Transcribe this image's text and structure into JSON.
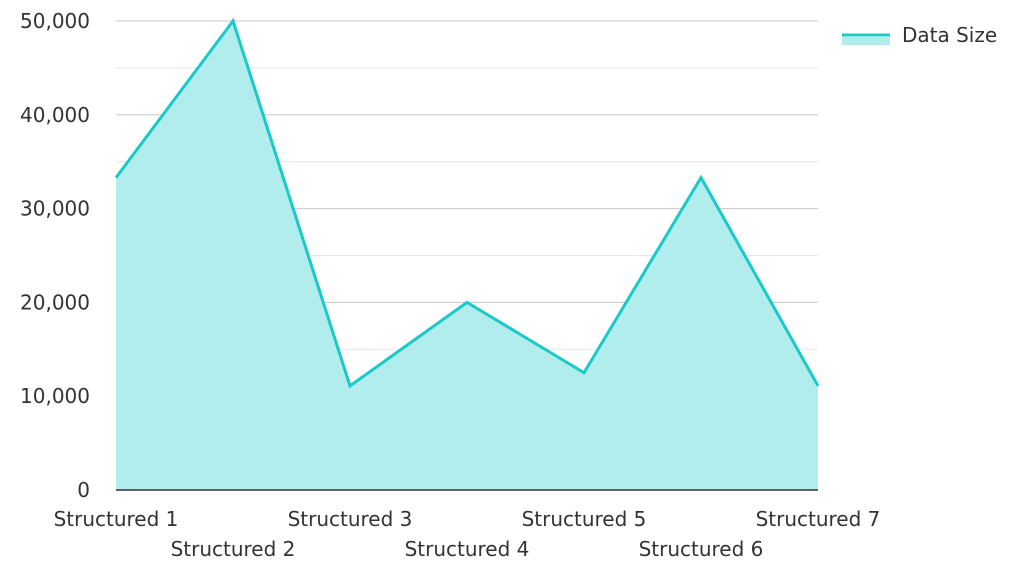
{
  "chart_data": {
    "type": "area",
    "title": "",
    "xlabel": "",
    "ylabel": "",
    "categories": [
      "Structured 1",
      "Structured 2",
      "Structured 3",
      "Structured 4",
      "Structured 5",
      "Structured 6",
      "Structured 7"
    ],
    "series": [
      {
        "name": "Data Size",
        "values": [
          33300,
          50000,
          11100,
          20000,
          12500,
          33300,
          11100
        ],
        "color": "#1ac9c9",
        "fill_color": "#b1eded"
      }
    ],
    "ylim": [
      0,
      50000
    ],
    "y_ticks": [
      {
        "value": 0,
        "label": "0"
      },
      {
        "value": 10000,
        "label": "10,000"
      },
      {
        "value": 20000,
        "label": "20,000"
      },
      {
        "value": 30000,
        "label": "30,000"
      },
      {
        "value": 40000,
        "label": "40,000"
      },
      {
        "value": 50000,
        "label": "50,000"
      }
    ],
    "grid": true,
    "legend_position": "top-right",
    "colors": {
      "major_grid": "#c8c8c8",
      "minor_grid": "#e6e6e6",
      "axis": "#333333",
      "text": "#333333"
    }
  }
}
